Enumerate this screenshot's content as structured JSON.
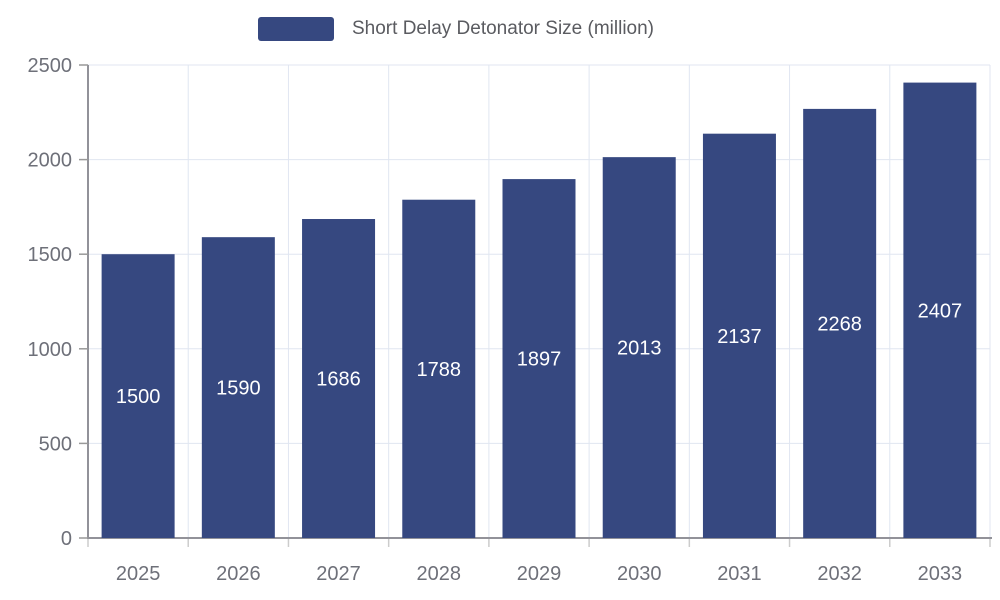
{
  "legend": {
    "label": "Short Delay Detonator Size (million)"
  },
  "chart_data": {
    "type": "bar",
    "title": "",
    "series_name": "Short Delay Detonator Size (million)",
    "categories": [
      "2025",
      "2026",
      "2027",
      "2028",
      "2029",
      "2030",
      "2031",
      "2032",
      "2033"
    ],
    "values": [
      1500,
      1590,
      1686,
      1788,
      1897,
      2013,
      2137,
      2268,
      2407
    ],
    "xlabel": "",
    "ylabel": "",
    "ylim": [
      0,
      2500
    ],
    "yticks": [
      0,
      500,
      1000,
      1500,
      2000,
      2500
    ],
    "grid": true,
    "legend_position": "top",
    "bar_labels_inside": true,
    "colors": {
      "bar": "#364880",
      "bar_label": "#ffffff",
      "axis_label": "#6E7079",
      "legend_text": "#5a5b60",
      "gridline": "#E0E6F1",
      "axis_line": "#929299",
      "tick": "#cccccc",
      "background": "#ffffff"
    }
  }
}
